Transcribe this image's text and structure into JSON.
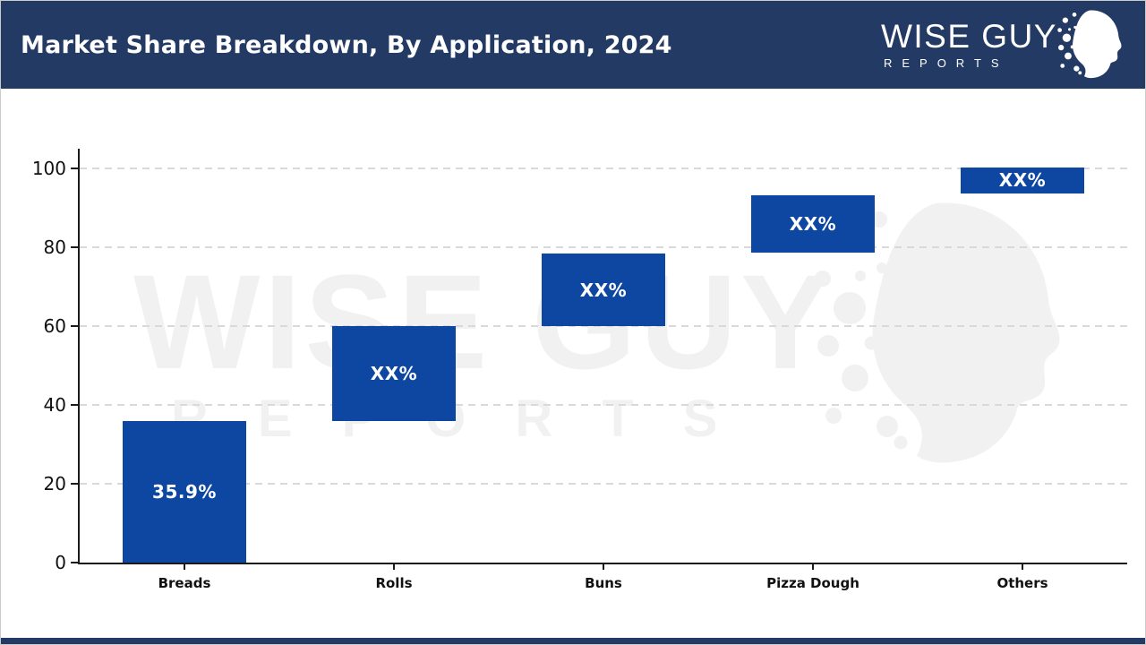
{
  "header": {
    "title": "Market Share Breakdown, By Application, 2024",
    "bg_color": "#223a64",
    "logo": {
      "line1": "WISE GUY",
      "line2": "REPORTS"
    }
  },
  "watermark": {
    "line1": "WISE GUY",
    "line2": "REPORTS"
  },
  "chart_data": {
    "type": "bar",
    "subtype": "waterfall",
    "title": "Market Share Breakdown, By Application, 2024",
    "categories": [
      "Breads",
      "Rolls",
      "Buns",
      "Pizza Dough",
      "Others"
    ],
    "segments": [
      {
        "category": "Breads",
        "start": 0,
        "end": 35.9,
        "label": "35.9%"
      },
      {
        "category": "Rolls",
        "start": 35.9,
        "end": 60.0,
        "label": "XX%"
      },
      {
        "category": "Buns",
        "start": 60.0,
        "end": 78.4,
        "label": "XX%"
      },
      {
        "category": "Pizza Dough",
        "start": 78.6,
        "end": 93.2,
        "label": "XX%"
      },
      {
        "category": "Others",
        "start": 93.6,
        "end": 100.3,
        "label": "XX%"
      }
    ],
    "yticks": [
      0,
      20,
      40,
      60,
      80,
      100
    ],
    "ylim": [
      0,
      105
    ],
    "xlabel": "",
    "ylabel": "",
    "grid": "horizontal-dashed",
    "legend": "none",
    "bar_color": "#0d47a1",
    "bar_label_color": "#ffffff",
    "axis_color": "#1a1a1a",
    "gridline_color": "#d9d9d9",
    "watermark_color": "#f1f1f1"
  }
}
